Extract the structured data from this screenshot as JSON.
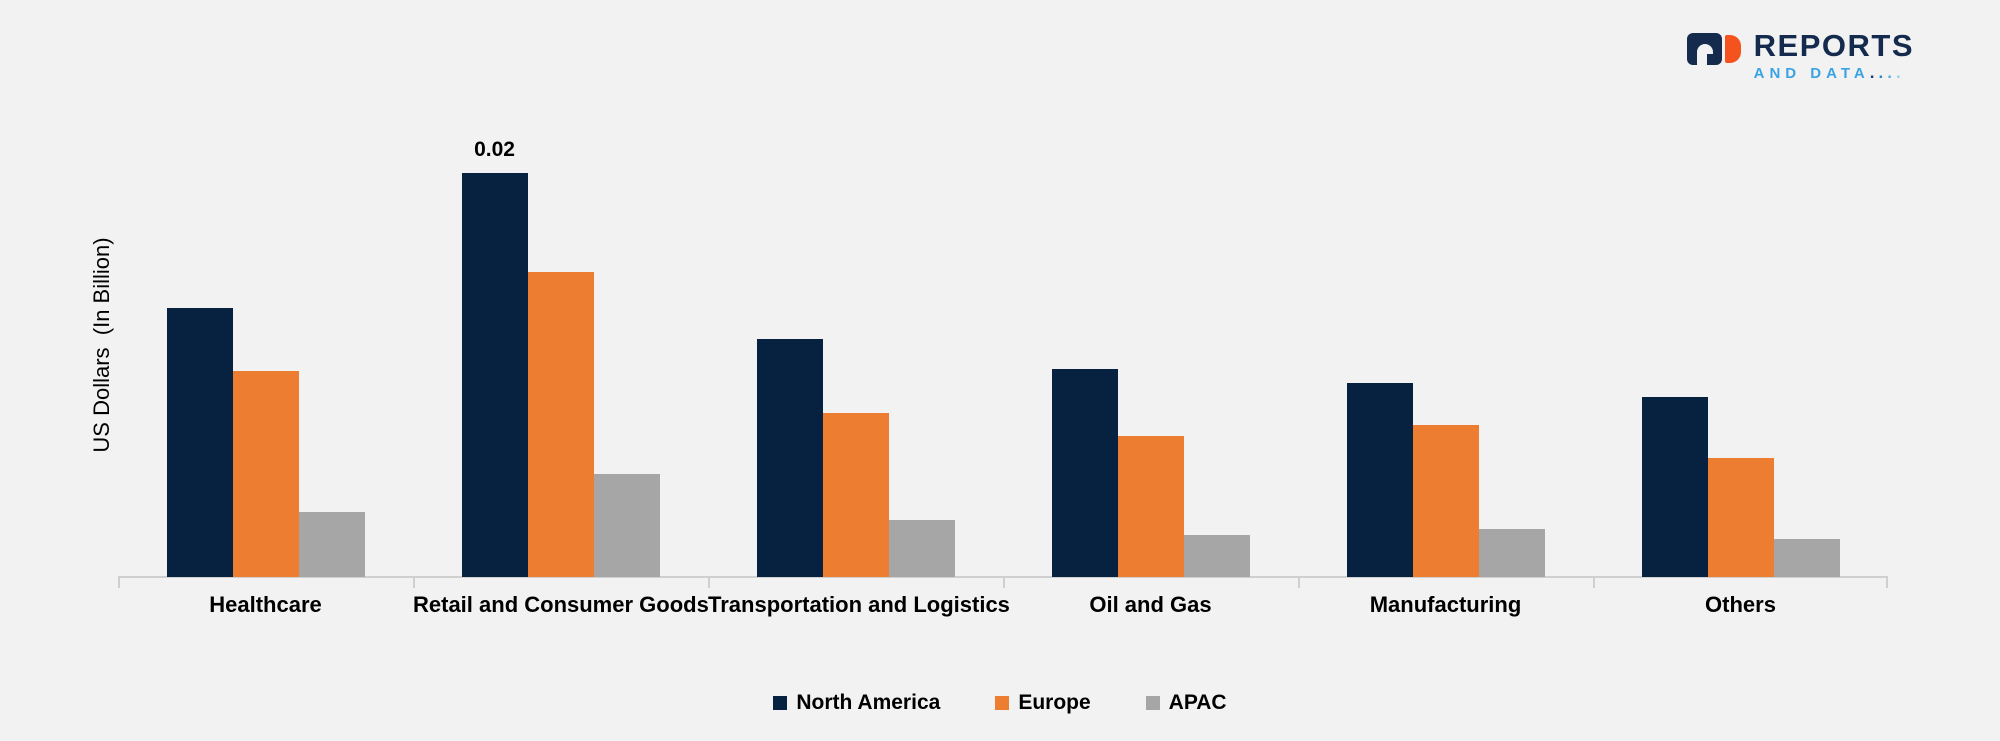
{
  "logo": {
    "title": "REPORTS",
    "subtitle": "AND DATA",
    "dots": "....",
    "colors": {
      "navy": "#152b4e",
      "orange": "#f4531e",
      "blue": "#3aa3e3"
    }
  },
  "chart_data": {
    "type": "bar",
    "title": "",
    "xlabel": "",
    "ylabel": "US Dollars  (In Billion)",
    "categories": [
      "Healthcare",
      "Retail and Consumer Goods",
      "Transportation and Logistics",
      "Oil and Gas",
      "Manufacturing",
      "Others"
    ],
    "series": [
      {
        "name": "North America",
        "color": "#062240",
        "values": [
          0.0133,
          0.02,
          0.0118,
          0.0103,
          0.0096,
          0.0089
        ]
      },
      {
        "name": "Europe",
        "color": "#ED7D31",
        "values": [
          0.0102,
          0.0151,
          0.0081,
          0.007,
          0.0075,
          0.0059
        ]
      },
      {
        "name": "APAC",
        "color": "#A6A6A6",
        "values": [
          0.0032,
          0.0051,
          0.0028,
          0.0021,
          0.0024,
          0.0019
        ]
      }
    ],
    "data_labels": [
      {
        "series": "North America",
        "category": "Retail and Consumer Goods",
        "text": "0.02"
      }
    ],
    "ylim": [
      0,
      0.0286
    ],
    "y_tick_labels": [],
    "grid": false,
    "legend_position": "bottom",
    "background": "#F2F2F2",
    "axis_color": "#CFCFCF"
  }
}
